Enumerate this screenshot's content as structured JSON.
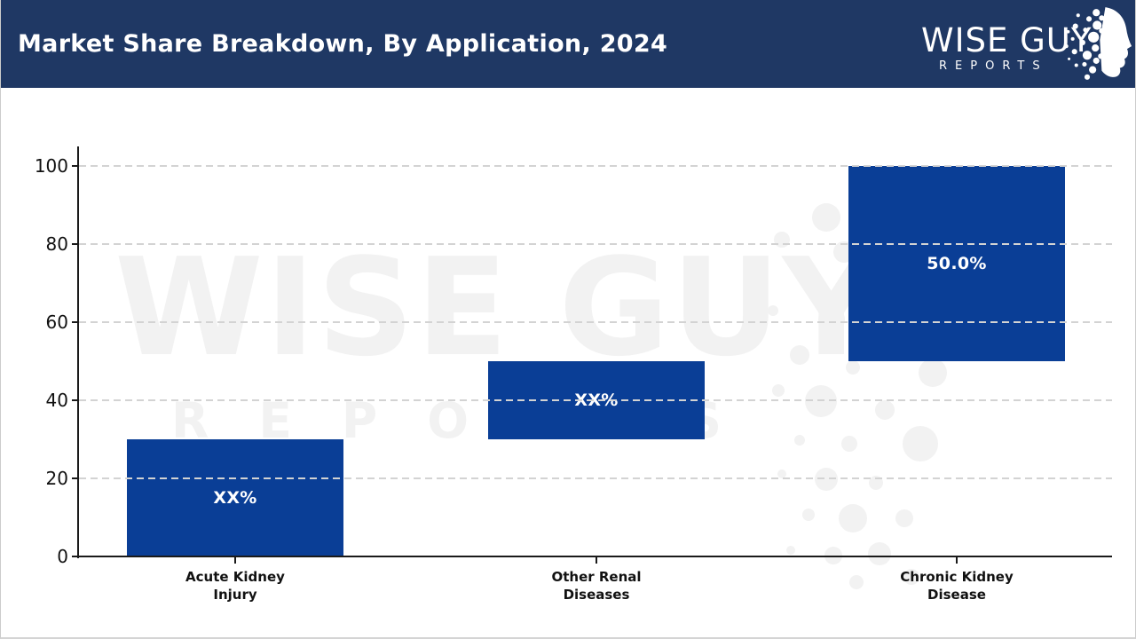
{
  "header": {
    "title": "Market Share Breakdown, By Application, 2024",
    "logo": {
      "brand": "WISE GUY",
      "sub": "REPORTS"
    }
  },
  "watermark": {
    "brand": "WISE GUY",
    "sub": "REPORTS"
  },
  "chart_data": {
    "type": "bar",
    "subtype": "floating-segment-bars",
    "title": "Market Share Breakdown, By Application, 2024",
    "categories": [
      "Acute Kidney Injury",
      "Other Renal Diseases",
      "Chronic Kidney Disease"
    ],
    "category_lines": [
      [
        "Acute Kidney",
        "Injury"
      ],
      [
        "Other Renal",
        "Diseases"
      ],
      [
        "Chronic Kidney",
        "Disease"
      ]
    ],
    "bars": [
      {
        "category": "Acute Kidney Injury",
        "base": 0,
        "top": 30,
        "label": "XX%"
      },
      {
        "category": "Other Renal Diseases",
        "base": 30,
        "top": 50,
        "label": "XX%"
      },
      {
        "category": "Chronic Kidney Disease",
        "base": 50,
        "top": 100,
        "label": "50.0%"
      }
    ],
    "xlabel": "",
    "ylabel": "",
    "ylim": [
      0,
      100
    ],
    "yticks": [
      0,
      20,
      40,
      60,
      80,
      100
    ],
    "grid": {
      "horizontal": true,
      "style": "dashed",
      "color": "#d3d3d3"
    },
    "legend": "none",
    "colors": {
      "bar": "#0a3e96",
      "header": "#1f3864",
      "axis": "#1a1a1a",
      "label_on_bar": "#ffffff"
    }
  }
}
